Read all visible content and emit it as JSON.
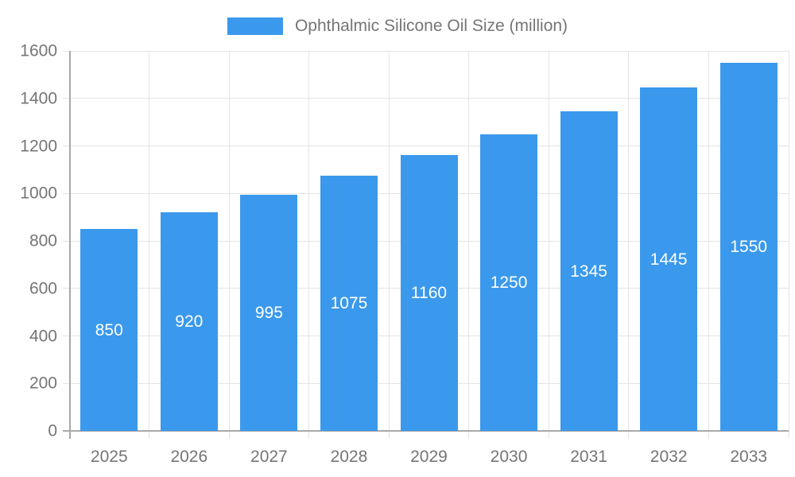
{
  "legend": {
    "label": "Ophthalmic Silicone Oil Size (million)"
  },
  "chart_data": {
    "type": "bar",
    "title": "Ophthalmic Silicone Oil Size (million)",
    "categories": [
      "2025",
      "2026",
      "2027",
      "2028",
      "2029",
      "2030",
      "2031",
      "2032",
      "2033"
    ],
    "values": [
      850,
      920,
      995,
      1075,
      1160,
      1250,
      1345,
      1445,
      1550
    ],
    "xlabel": "",
    "ylabel": "",
    "ylim": [
      0,
      1600
    ],
    "ytick_step": 200,
    "yticks": [
      0,
      200,
      400,
      600,
      800,
      1000,
      1200,
      1400,
      1600
    ],
    "grid": true,
    "legend_position": "top-center",
    "value_labels": "inside-center",
    "colors": {
      "bar": "#3A99EC",
      "grid": "#e4e4e4",
      "axis": "#a8a8a8",
      "text": "#757575",
      "value_label": "#ffffff"
    }
  }
}
